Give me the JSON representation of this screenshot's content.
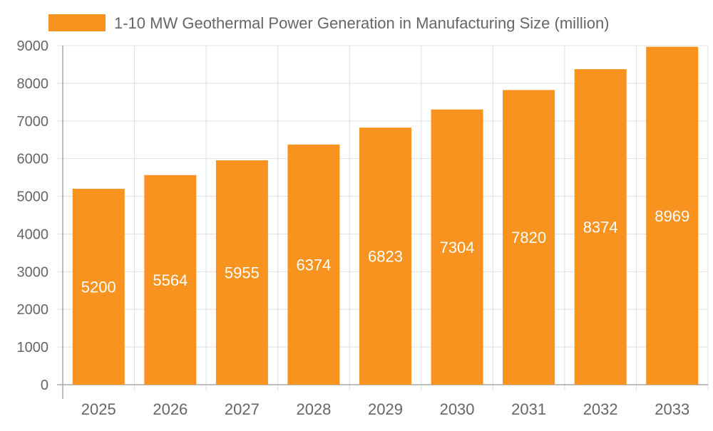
{
  "chart_data": {
    "type": "bar",
    "title": "",
    "xlabel": "",
    "ylabel": "",
    "categories": [
      "2025",
      "2026",
      "2027",
      "2028",
      "2029",
      "2030",
      "2031",
      "2032",
      "2033"
    ],
    "series": [
      {
        "name": "1-10 MW Geothermal Power Generation in Manufacturing Size (million)",
        "values": [
          5200,
          5564,
          5955,
          6374,
          6823,
          7304,
          7820,
          8374,
          8969
        ],
        "color": "#f7931e"
      }
    ],
    "ylim": [
      0,
      9000
    ],
    "yticks": [
      0,
      1000,
      2000,
      3000,
      4000,
      5000,
      6000,
      7000,
      8000,
      9000
    ],
    "grid": true,
    "legend": "top",
    "data_labels": "inside-center",
    "colors": {
      "grid": "#e0e0e0",
      "axis": "#a8a8a8",
      "text": "#666666",
      "label": "#ffffff"
    }
  }
}
